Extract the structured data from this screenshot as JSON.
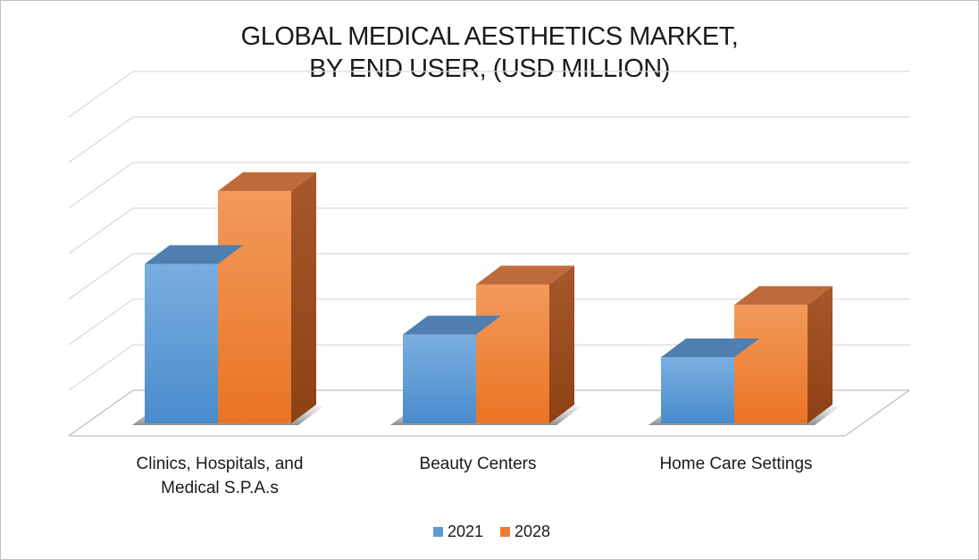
{
  "chart_data": {
    "type": "bar",
    "title_lines": [
      "GLOBAL MEDICAL AESTHETICS MARKET,",
      "BY END USER, (USD MILLION)"
    ],
    "categories": [
      [
        "Clinics, Hospitals, and",
        "Medical S.P.A.s"
      ],
      [
        "Beauty Centers"
      ],
      [
        "Home Care Settings"
      ]
    ],
    "series": [
      {
        "name": "2021",
        "values": [
          3.5,
          1.95,
          1.45
        ],
        "color": "#5b9bd5"
      },
      {
        "name": "2028",
        "values": [
          5.1,
          3.05,
          2.6
        ],
        "color": "#ed7d31"
      }
    ],
    "ylim": [
      0,
      7
    ],
    "grid": true,
    "legend": "bottom",
    "projection": "3d"
  }
}
